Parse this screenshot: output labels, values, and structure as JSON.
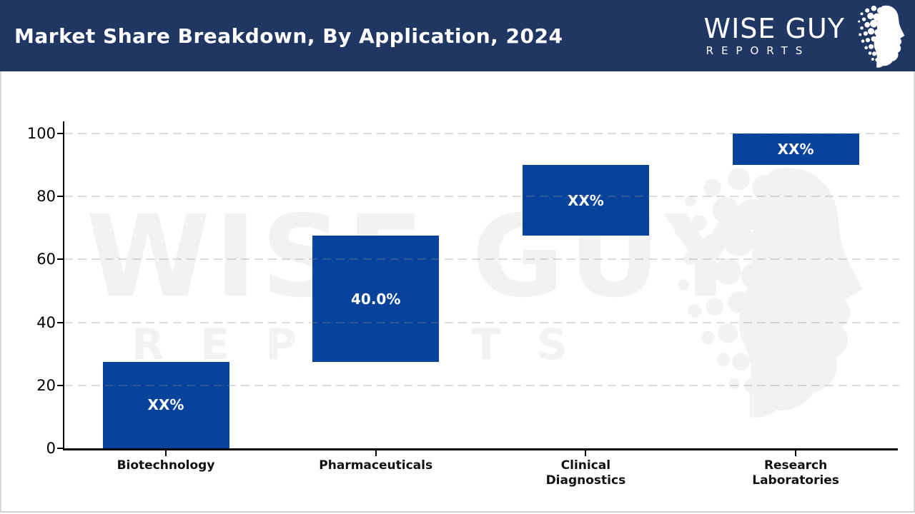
{
  "header": {
    "title": "Market Share Breakdown, By Application, 2024",
    "logo": {
      "line1": "WISE GUY",
      "line2": "REPORTS"
    }
  },
  "watermark": {
    "line1": "WISE GUY",
    "line2": "REPORTS"
  },
  "colors": {
    "header_bg": "#203764",
    "bar": "#07439a",
    "bar_label": "#ffffff",
    "axis": "#000000",
    "gridline": "#dcdcdc",
    "watermark": "#f2f2f2",
    "title_text": "#ffffff"
  },
  "chart_data": {
    "type": "bar",
    "subtype": "floating-waterfall-percent",
    "title": "Market Share Breakdown, By Application, 2024",
    "categories": [
      "Biotechnology",
      "Pharmaceuticals",
      "Clinical Diagnostics",
      "Research Laboratories"
    ],
    "segments": [
      {
        "category": "Biotechnology",
        "display": "Biotechnology",
        "start": 0,
        "end": 27.5,
        "value_label": "XX%"
      },
      {
        "category": "Pharmaceuticals",
        "display": "Pharmaceuticals",
        "start": 27.5,
        "end": 67.5,
        "value_label": "40.0%"
      },
      {
        "category": "Clinical Diagnostics",
        "display": "Clinical\nDiagnostics",
        "start": 67.5,
        "end": 90,
        "value_label": "XX%"
      },
      {
        "category": "Research Laboratories",
        "display": "Research\nLaboratories",
        "start": 90,
        "end": 100,
        "value_label": "XX%"
      }
    ],
    "yticks": [
      0,
      20,
      40,
      60,
      80,
      100
    ],
    "ylim": [
      0,
      104
    ],
    "xlabel": "",
    "ylabel": "",
    "grid": "horizontal-dashed",
    "legend": "none"
  }
}
